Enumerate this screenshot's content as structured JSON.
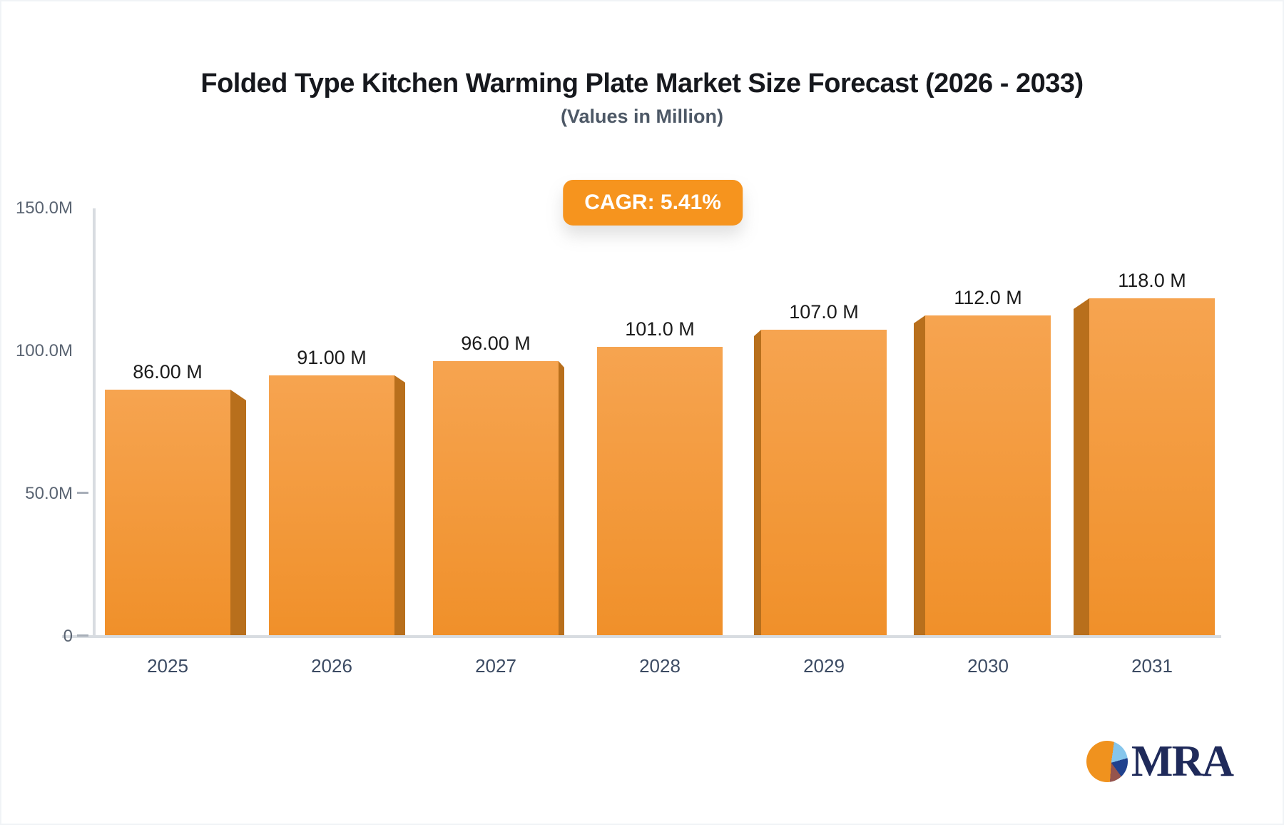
{
  "header": {
    "title": "Folded Type Kitchen Warming Plate Market Size Forecast (2026 - 2033)",
    "subtitle": "(Values in Million)"
  },
  "badge": {
    "label": "CAGR: 5.41%",
    "bg_color": "#F6941E",
    "text_color": "#FFFFFF"
  },
  "chart_data": {
    "type": "bar",
    "title": "Folded Type Kitchen Warming Plate Market Size Forecast (2026 - 2033)",
    "subtitle": "(Values in Million)",
    "categories": [
      "2025",
      "2026",
      "2027",
      "2028",
      "2029",
      "2030",
      "2031"
    ],
    "values": [
      86,
      91,
      96,
      101,
      107,
      112,
      118
    ],
    "value_labels": [
      "86.00 M",
      "91.00 M",
      "96.00 M",
      "101.0 M",
      "107.0 M",
      "112.0 M",
      "118.0 M"
    ],
    "ylim": [
      0,
      150
    ],
    "yticks": [
      {
        "value": 150,
        "label": "150.0M",
        "tick": false
      },
      {
        "value": 100,
        "label": "100.0M",
        "tick": false
      },
      {
        "value": 50,
        "label": "50.0M",
        "tick": true
      },
      {
        "value": 0,
        "label": "0",
        "tick": true
      }
    ],
    "grid": false,
    "legend": null,
    "style": {
      "bar_face_top": "#F6A450",
      "bar_face_bottom": "#F0902A",
      "bar_side": "#B86F1C",
      "axis_line": "#D8DCE1",
      "tick_color": "#A7AEB8"
    }
  },
  "logo": {
    "text": "MRA",
    "text_color": "#1F2A5A",
    "pie_colors": [
      "#F0921E",
      "#86C6EC",
      "#20418D",
      "#96544C"
    ]
  }
}
